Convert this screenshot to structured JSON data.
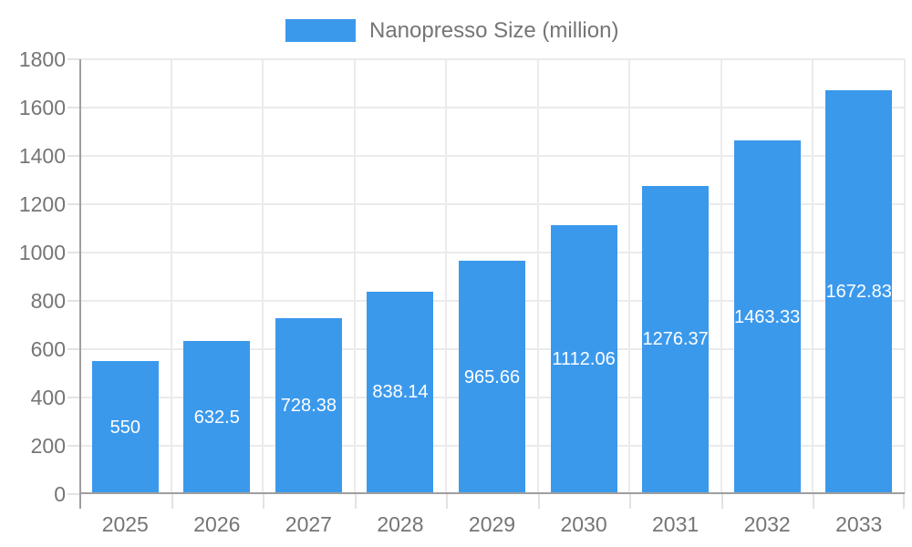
{
  "legend": {
    "items": [
      {
        "label": "Nanopresso Size (million)",
        "color": "#3b99ec"
      }
    ]
  },
  "chart_data": {
    "type": "bar",
    "title": "",
    "categories": [
      "2025",
      "2026",
      "2027",
      "2028",
      "2029",
      "2030",
      "2031",
      "2032",
      "2033"
    ],
    "series": [
      {
        "name": "Nanopresso Size (million)",
        "color": "#3b99ec",
        "values": [
          550,
          632.5,
          728.38,
          838.14,
          965.66,
          1112.06,
          1276.37,
          1463.33,
          1672.83
        ],
        "value_labels": [
          "550",
          "632.5",
          "728.38",
          "838.14",
          "965.66",
          "1112.06",
          "1276.37",
          "1463.33",
          "1672.83"
        ]
      }
    ],
    "xlabel": "",
    "ylabel": "",
    "ylim": [
      0,
      1800
    ],
    "yticks": [
      0,
      200,
      400,
      600,
      800,
      1000,
      1200,
      1400,
      1600,
      1800
    ],
    "grid": true,
    "legend_position": "top",
    "value_label_position": "inside-center",
    "value_label_color": "#ffffff"
  },
  "colors": {
    "bar": "#3b99ec",
    "gridline": "#ebebeb",
    "axis_line": "#9e9e9e",
    "tick": "#e3e3e3",
    "axis_label": "#757575",
    "background": "#ffffff"
  }
}
